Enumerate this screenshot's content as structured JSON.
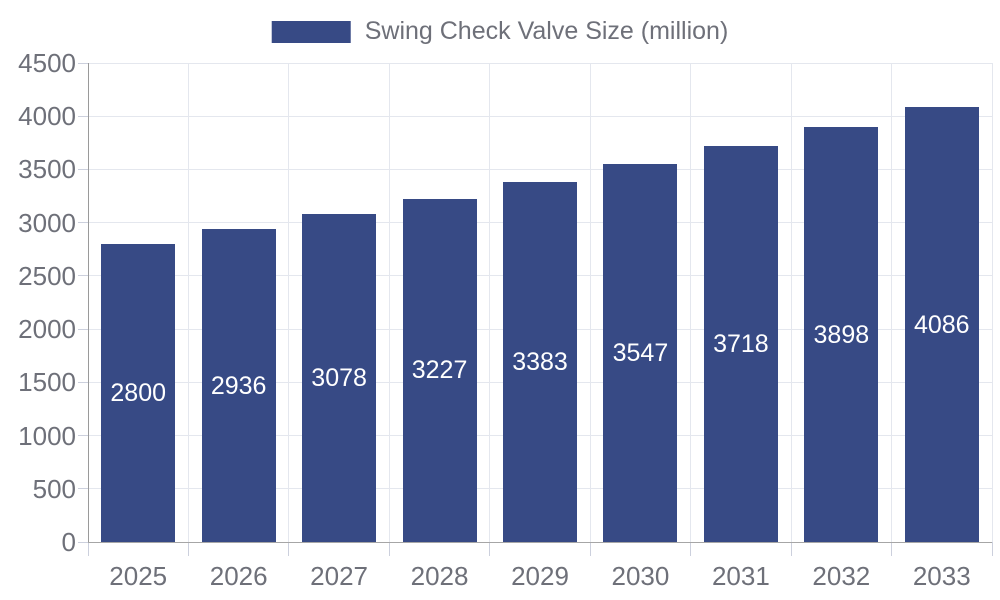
{
  "chart_data": {
    "type": "bar",
    "title": "Swing Check Valve Size (million)",
    "categories": [
      "2025",
      "2026",
      "2027",
      "2028",
      "2029",
      "2030",
      "2031",
      "2032",
      "2033"
    ],
    "values": [
      2800,
      2936,
      3078,
      3227,
      3383,
      3547,
      3718,
      3898,
      4086
    ],
    "xlabel": "",
    "ylabel": "",
    "ylim": [
      0,
      4500
    ],
    "ytick_step": 500,
    "yticks": [
      0,
      500,
      1000,
      1500,
      2000,
      2500,
      3000,
      3500,
      4000,
      4500
    ],
    "grid": true,
    "legend_position": "top-center",
    "value_labels": "inside-center",
    "colors": {
      "bar": "#374a85",
      "value_label": "#ffffff",
      "axis_label": "#6e7079",
      "title": "#6e7079",
      "gridline": "#e4e7ee",
      "tick": "#ccd0dd",
      "axis_line_y": "#9a9a9a",
      "axis_line_x": "#a6a6a6",
      "background": "#ffffff"
    }
  }
}
